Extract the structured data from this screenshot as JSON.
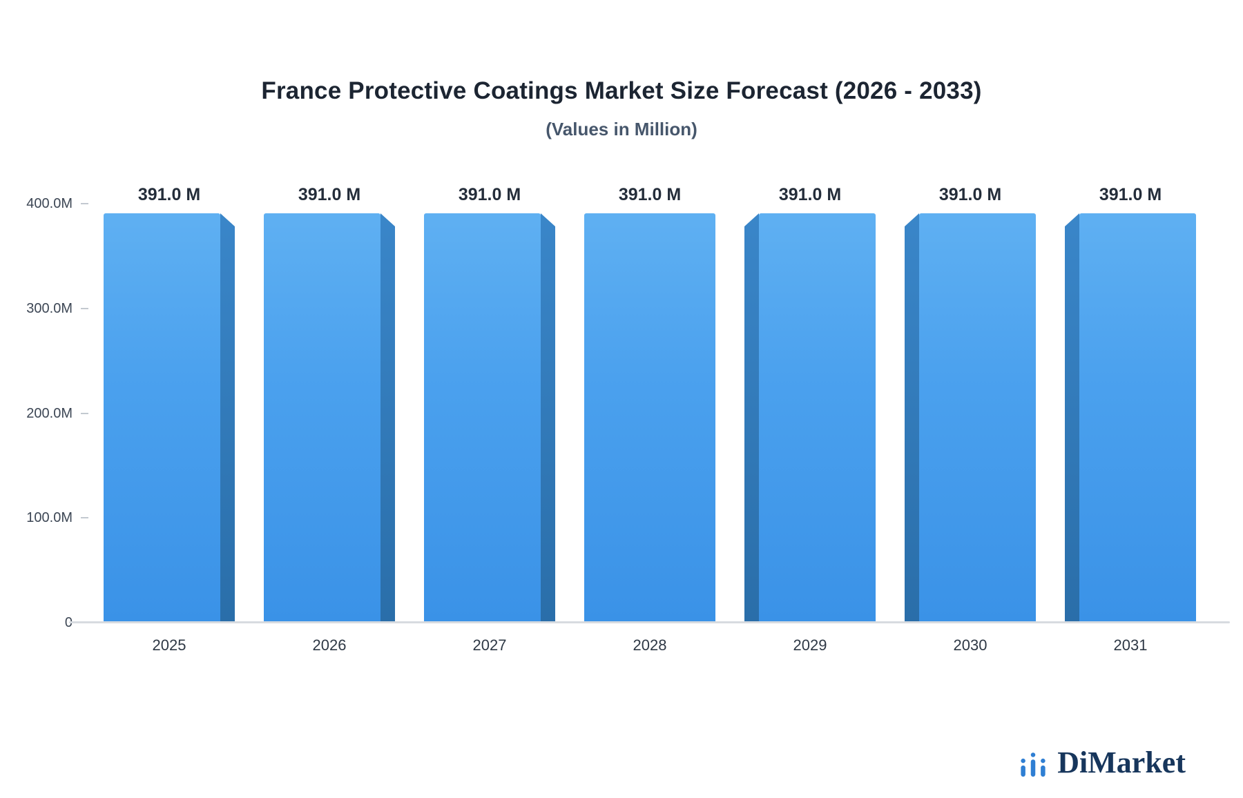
{
  "chart_data": {
    "type": "bar",
    "title": "France Protective Coatings Market Size Forecast (2026 - 2033)",
    "subtitle": "(Values in Million)",
    "categories": [
      "2025",
      "2026",
      "2027",
      "2028",
      "2029",
      "2030",
      "2031"
    ],
    "values": [
      391.0,
      391.0,
      391.0,
      391.0,
      391.0,
      391.0,
      391.0
    ],
    "value_labels": [
      "391.0 M",
      "391.0 M",
      "391.0 M",
      "391.0 M",
      "391.0 M",
      "391.0 M",
      "391.0 M"
    ],
    "unit": "Million",
    "ylim": [
      0,
      400
    ],
    "yticks": [
      {
        "value": 0,
        "label": "0"
      },
      {
        "value": 100,
        "label": "100.0M"
      },
      {
        "value": 200,
        "label": "200.0M"
      },
      {
        "value": 300,
        "label": "300.0M"
      },
      {
        "value": 400,
        "label": "400.0M"
      }
    ],
    "grid": false,
    "legend": "none",
    "colors": {
      "bar_top": "#5fb0f2",
      "bar_bottom": "#3a92e7",
      "bar_side": "#2d7abe",
      "axis_line": "#d7dbe0",
      "label_text": "#242d3a"
    }
  },
  "logo": {
    "text": "DiMarket",
    "text_color": "#17365c",
    "icon": "bar-chart-dots-icon",
    "icon_color": "#2f7fd3"
  }
}
